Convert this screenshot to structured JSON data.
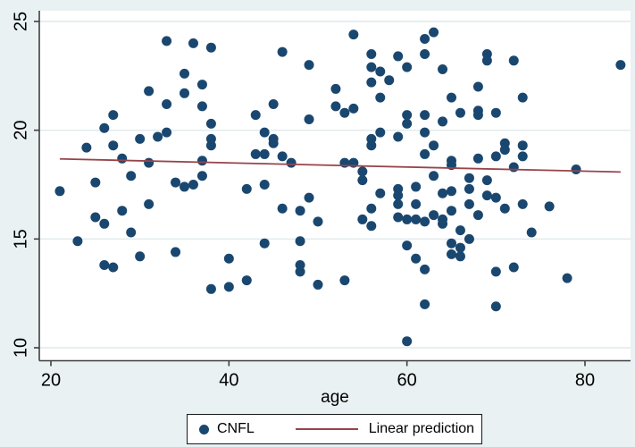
{
  "colors": {
    "figure_background": "#e9f1f3",
    "plot_background": "#ffffff",
    "grid": "#dfeaec",
    "axis": "#3f3f3f",
    "text": "#000000",
    "scatter": "#1a476f",
    "fit_line": "#97444b"
  },
  "chart_data": {
    "type": "scatter",
    "title": "",
    "xlabel": "age",
    "ylabel": "",
    "xlim": [
      18.7,
      85.3
    ],
    "ylim": [
      9.4,
      25.6
    ],
    "x_ticks": [
      20,
      40,
      60,
      80
    ],
    "y_ticks": [
      10,
      15,
      20,
      25
    ],
    "grid": "horizontal-only",
    "legend_position": "bottom-center",
    "series": [
      {
        "name": "CNFL",
        "type": "scatter",
        "marker": "circle",
        "color": "#1a476f",
        "points": [
          [
            33,
            24.1
          ],
          [
            36,
            24
          ],
          [
            38,
            23.8
          ],
          [
            35,
            22.6
          ],
          [
            37,
            22.1
          ],
          [
            31,
            21.8
          ],
          [
            35,
            21.7
          ],
          [
            33,
            21.2
          ],
          [
            37,
            21.1
          ],
          [
            27,
            20.7
          ],
          [
            38,
            20.3
          ],
          [
            26,
            20.1
          ],
          [
            33,
            19.9
          ],
          [
            32,
            19.7
          ],
          [
            30,
            19.6
          ],
          [
            38,
            19.6
          ],
          [
            38,
            19.3
          ],
          [
            24,
            19.2
          ],
          [
            27,
            19.3
          ],
          [
            28,
            18.7
          ],
          [
            31,
            18.5
          ],
          [
            37,
            18.6
          ],
          [
            29,
            17.9
          ],
          [
            37,
            17.9
          ],
          [
            34,
            17.6
          ],
          [
            25,
            17.6
          ],
          [
            36,
            17.5
          ],
          [
            35,
            17.4
          ],
          [
            21,
            17.2
          ],
          [
            54,
            24.4
          ],
          [
            63,
            24.5
          ],
          [
            62,
            24.2
          ],
          [
            46,
            23.6
          ],
          [
            56,
            23.5
          ],
          [
            59,
            23.4
          ],
          [
            62,
            23.5
          ],
          [
            49,
            23
          ],
          [
            60,
            22.9
          ],
          [
            56,
            22.9
          ],
          [
            57,
            22.7
          ],
          [
            64,
            22.8
          ],
          [
            58,
            22.3
          ],
          [
            56,
            22.2
          ],
          [
            52,
            21.9
          ],
          [
            57,
            21.5
          ],
          [
            45,
            21.2
          ],
          [
            52,
            21.1
          ],
          [
            53,
            20.8
          ],
          [
            54,
            21
          ],
          [
            43,
            20.7
          ],
          [
            49,
            20.5
          ],
          [
            60,
            20.7
          ],
          [
            62,
            20.7
          ],
          [
            60,
            20.3
          ],
          [
            64,
            20.4
          ],
          [
            44,
            19.9
          ],
          [
            57,
            19.9
          ],
          [
            62,
            19.9
          ],
          [
            45,
            19.6
          ],
          [
            45,
            19.4
          ],
          [
            59,
            19.7
          ],
          [
            56,
            19.6
          ],
          [
            56,
            19.3
          ],
          [
            63,
            19.3
          ],
          [
            43,
            18.9
          ],
          [
            44,
            18.9
          ],
          [
            46,
            18.8
          ],
          [
            62,
            18.9
          ],
          [
            47,
            18.5
          ],
          [
            53,
            18.5
          ],
          [
            54,
            18.5
          ],
          [
            55,
            18.1
          ],
          [
            55,
            17.7
          ],
          [
            44,
            17.5
          ],
          [
            59,
            17.3
          ],
          [
            59,
            17
          ],
          [
            61,
            17.4
          ],
          [
            63,
            17.9
          ],
          [
            69,
            23.5
          ],
          [
            69,
            23.2
          ],
          [
            72,
            23.2
          ],
          [
            84,
            23
          ],
          [
            68,
            22
          ],
          [
            65,
            21.5
          ],
          [
            73,
            21.5
          ],
          [
            66,
            20.8
          ],
          [
            68,
            20.9
          ],
          [
            68,
            20.7
          ],
          [
            70,
            20.8
          ],
          [
            71,
            19.4
          ],
          [
            71,
            19.1
          ],
          [
            73,
            19.3
          ],
          [
            73,
            18.8
          ],
          [
            70,
            18.8
          ],
          [
            68,
            18.7
          ],
          [
            65,
            18.6
          ],
          [
            65,
            18.4
          ],
          [
            72,
            18.3
          ],
          [
            79,
            18.2
          ],
          [
            67,
            17.8
          ],
          [
            69,
            17.7
          ],
          [
            65,
            17.2
          ],
          [
            67,
            17.3
          ],
          [
            31,
            16.6
          ],
          [
            28,
            16.3
          ],
          [
            25,
            16
          ],
          [
            26,
            15.7
          ],
          [
            29,
            15.3
          ],
          [
            23,
            14.9
          ],
          [
            30,
            14.2
          ],
          [
            34,
            14.4
          ],
          [
            26,
            13.8
          ],
          [
            27,
            13.7
          ],
          [
            40,
            14.1
          ],
          [
            38,
            12.7
          ],
          [
            40,
            12.8
          ],
          [
            42,
            17.3
          ],
          [
            49,
            16.9
          ],
          [
            46,
            16.4
          ],
          [
            48,
            16.3
          ],
          [
            50,
            15.8
          ],
          [
            57,
            17.1
          ],
          [
            61,
            16.6
          ],
          [
            59,
            16.6
          ],
          [
            56,
            16.4
          ],
          [
            55,
            15.9
          ],
          [
            56,
            15.6
          ],
          [
            59,
            16
          ],
          [
            60,
            15.9
          ],
          [
            61,
            15.9
          ],
          [
            62,
            15.8
          ],
          [
            63,
            16.1
          ],
          [
            44,
            14.8
          ],
          [
            48,
            14.9
          ],
          [
            60,
            14.7
          ],
          [
            61,
            14.1
          ],
          [
            62,
            13.6
          ],
          [
            48,
            13.8
          ],
          [
            48,
            13.5
          ],
          [
            42,
            13.1
          ],
          [
            53,
            13.1
          ],
          [
            50,
            12.9
          ],
          [
            62,
            12
          ],
          [
            60,
            10.3
          ],
          [
            64,
            17.1
          ],
          [
            69,
            17
          ],
          [
            70,
            16.9
          ],
          [
            71,
            16.4
          ],
          [
            67,
            16.6
          ],
          [
            65,
            16.3
          ],
          [
            64,
            15.9
          ],
          [
            64,
            15.7
          ],
          [
            68,
            16.1
          ],
          [
            73,
            16.6
          ],
          [
            76,
            16.5
          ],
          [
            66,
            15.4
          ],
          [
            74,
            15.3
          ],
          [
            67,
            15
          ],
          [
            65,
            14.8
          ],
          [
            66,
            14.6
          ],
          [
            65,
            14.3
          ],
          [
            66,
            14.2
          ],
          [
            72,
            13.7
          ],
          [
            70,
            13.5
          ],
          [
            78,
            13.2
          ],
          [
            70,
            11.9
          ]
        ]
      },
      {
        "name": "Linear prediction",
        "type": "line",
        "color": "#97444b",
        "points": [
          [
            21,
            18.68
          ],
          [
            84,
            18.08
          ]
        ]
      }
    ]
  },
  "legend": {
    "items": [
      {
        "label": "CNFL",
        "marker": "circle",
        "color": "#1a476f"
      },
      {
        "label": "Linear prediction",
        "marker": "line",
        "color": "#97444b"
      }
    ]
  }
}
